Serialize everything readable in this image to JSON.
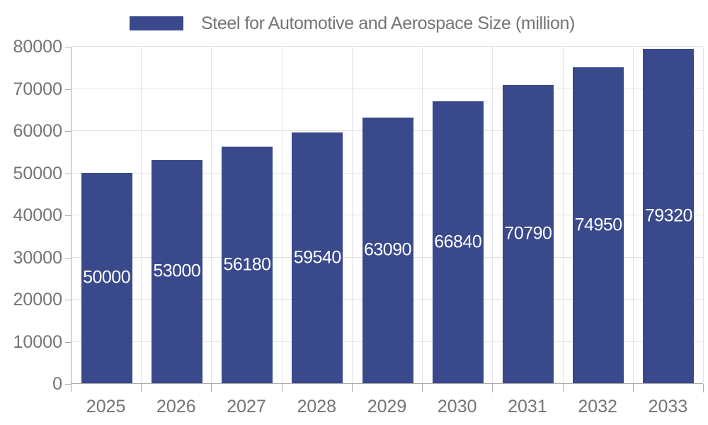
{
  "chart_data": {
    "type": "bar",
    "title": "Steel for Automotive and Aerospace Size (million)",
    "legend": {
      "label": "Steel for Automotive and Aerospace Size (million)",
      "position": "top"
    },
    "categories": [
      "2025",
      "2026",
      "2027",
      "2028",
      "2029",
      "2030",
      "2031",
      "2032",
      "2033"
    ],
    "series": [
      {
        "name": "Steel for Automotive and Aerospace Size (million)",
        "values": [
          50000,
          53000,
          56180,
          59540,
          63090,
          66840,
          70790,
          74950,
          79320
        ]
      }
    ],
    "xlabel": "",
    "ylabel": "",
    "ylim": [
      0,
      80000
    ],
    "ytick_step": 10000,
    "yticks": [
      0,
      10000,
      20000,
      30000,
      40000,
      50000,
      60000,
      70000,
      80000
    ],
    "grid": true,
    "colors": {
      "bar": "#39498B",
      "bar_label": "#ffffff",
      "axis_text": "#747474",
      "grid_line": "#e3e3e3",
      "axis_line": "#adadad",
      "background": "#ffffff"
    }
  }
}
